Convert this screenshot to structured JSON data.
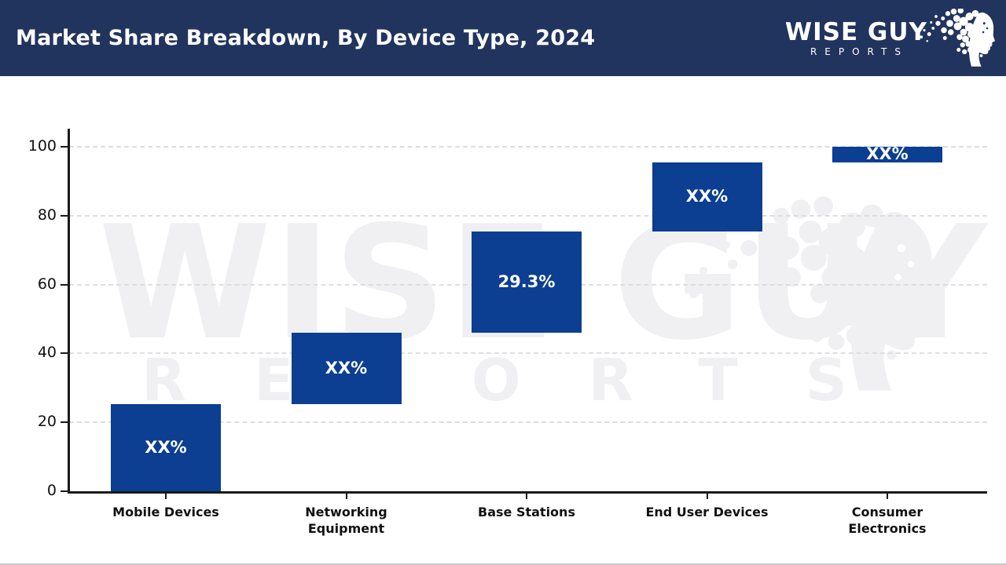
{
  "header": {
    "title": "Market Share Breakdown, By Device Type, 2024",
    "logo_line1": "WISE GUY",
    "logo_line2": "REPORTS"
  },
  "watermark": {
    "line1": "WISE GUY",
    "line2": "REPORTS"
  },
  "chart_data": {
    "type": "bar",
    "subtype": "waterfall",
    "title": "Market Share Breakdown, By Device Type, 2024",
    "unit": "%",
    "categories": [
      "Mobile Devices",
      "Networking Equipment",
      "Base Stations",
      "End User Devices",
      "Consumer Electronics"
    ],
    "category_lines": [
      [
        "Mobile Devices"
      ],
      [
        "Networking",
        "Equipment"
      ],
      [
        "Base Stations"
      ],
      [
        "End User Devices"
      ],
      [
        "Consumer",
        "Electronics"
      ]
    ],
    "segments": [
      {
        "category": "Mobile Devices",
        "start": 0,
        "end": 25.2,
        "label": "XX%"
      },
      {
        "category": "Networking Equipment",
        "start": 25.2,
        "end": 46.1,
        "label": "XX%"
      },
      {
        "category": "Base Stations",
        "start": 46.1,
        "end": 75.4,
        "label": "29.3%"
      },
      {
        "category": "End User Devices",
        "start": 75.4,
        "end": 95.5,
        "label": "XX%"
      },
      {
        "category": "Consumer Electronics",
        "start": 95.5,
        "end": 100,
        "label": "XX%"
      }
    ],
    "yticks": [
      0,
      20,
      40,
      60,
      80,
      100
    ],
    "ylim": [
      0,
      105
    ],
    "grid": "dashed-horizontal",
    "legend": "none",
    "bar_color": "#0c3e92",
    "label_color": "#ffffff",
    "axis_color": "#1a1a1a",
    "gridline_color": "#dedede"
  },
  "colors": {
    "header_bg": "#21345e",
    "body_bg": "#ffffff",
    "watermark": "#f0f0f3",
    "border": "#c9c9c9"
  }
}
